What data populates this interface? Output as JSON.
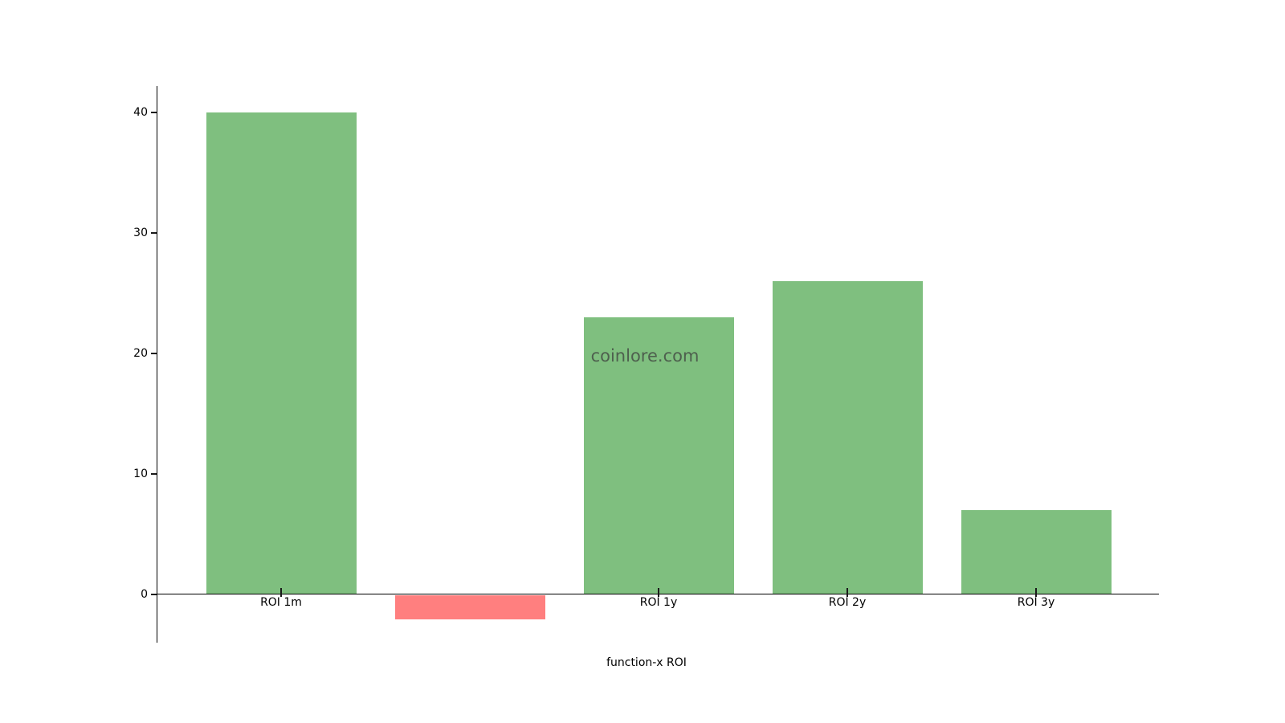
{
  "page": {
    "background": "#ffffff"
  },
  "chart_data": {
    "type": "bar",
    "title": "",
    "xlabel": "function-x ROI",
    "ylabel": "",
    "categories": [
      "ROI 1m",
      "",
      "ROI 1y",
      "ROI 2y",
      "ROI 3y"
    ],
    "values": [
      40,
      -2,
      23,
      26,
      7
    ],
    "y_ticks": [
      0,
      10,
      20,
      30,
      40
    ],
    "ylim": [
      -4,
      42
    ],
    "grid": false,
    "legend": "none",
    "colors": {
      "positive_bar": "#7fbf7f",
      "negative_bar": "#ff7f7f",
      "axis": "#000000",
      "tick_text": "#000000"
    },
    "watermark": {
      "text": "coinlore.com",
      "color": "rgba(60,60,60,0.72)"
    }
  }
}
